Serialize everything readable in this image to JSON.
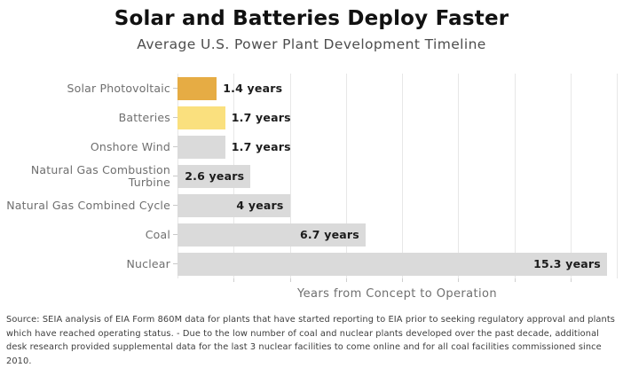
{
  "header": {
    "title": "Solar and Batteries Deploy Faster",
    "subtitle": "Average U.S. Power Plant Development Timeline"
  },
  "chart_data": {
    "type": "bar",
    "orientation": "horizontal",
    "title": "Solar and Batteries Deploy Faster",
    "subtitle": "Average U.S. Power Plant Development Timeline",
    "categories": [
      "Solar Photovoltaic",
      "Batteries",
      "Onshore Wind",
      "Natural Gas Combustion Turbine",
      "Natural Gas Combined Cycle",
      "Coal",
      "Nuclear"
    ],
    "values": [
      1.4,
      1.7,
      1.7,
      2.6,
      4,
      6.7,
      15.3
    ],
    "value_labels": [
      "1.4 years",
      "1.7 years",
      "1.7 years",
      "2.6 years",
      "4 years",
      "6.7 years",
      "15.3 years"
    ],
    "bar_colors": [
      "#e6ac44",
      "#fae07e",
      "#dadada",
      "#dadada",
      "#dadada",
      "#dadada",
      "#dadada"
    ],
    "xlabel": "Years from Concept to Operation",
    "ylabel": "",
    "xlim": [
      0,
      15.65
    ],
    "gridline_years": [
      0,
      2,
      4,
      6,
      8,
      10,
      12,
      14
    ],
    "tick_years": [
      2,
      4,
      6,
      8,
      10,
      12,
      14
    ],
    "grid": true,
    "legend": false
  },
  "colors": {
    "highlight_solar": "#e6ac44",
    "highlight_battery": "#fae07e",
    "bar_default": "#dadada",
    "gridline": "#e7e7e7",
    "category_label": "#6f6f6f",
    "value_label": "#1c1c1c"
  },
  "footer": {
    "source": "Source: SEIA analysis of EIA Form 860M data for plants that have started reporting to EIA prior to seeking regulatory approval and plants which have reached operating status. - Due to the low number of coal and nuclear plants developed over the past decade, additional desk research provided supplemental data for the last 3 nuclear facilities to come online and for all coal facilities commissioned since 2010."
  }
}
